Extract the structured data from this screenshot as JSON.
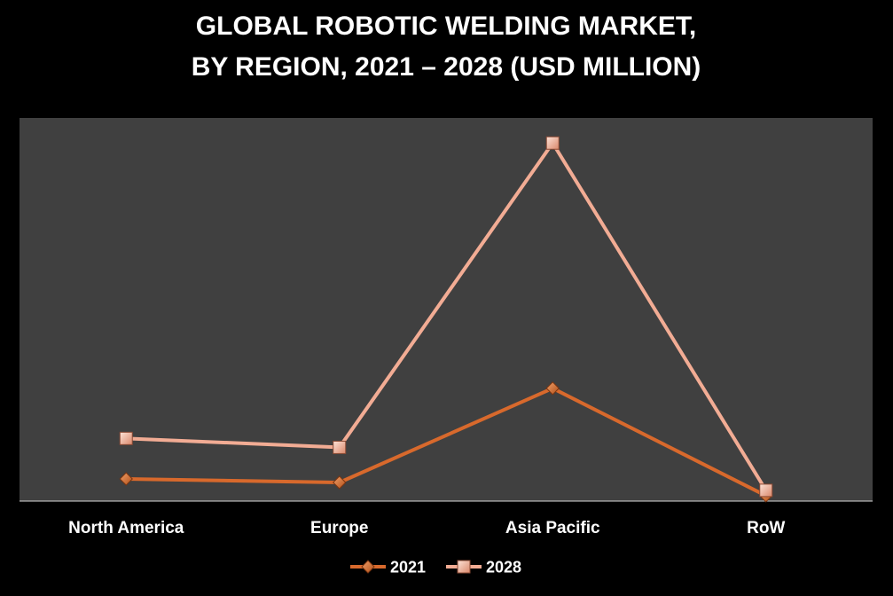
{
  "chart_data": {
    "type": "line",
    "title_lines": [
      "GLOBAL ROBOTIC WELDING MARKET,",
      "BY REGION, 2021 – 2028 (USD MILLION)"
    ],
    "categories": [
      "North America",
      "Europe",
      "Asia Pacific",
      "RoW"
    ],
    "series": [
      {
        "name": "2021",
        "values": [
          6.2,
          5.2,
          31.5,
          1.5
        ],
        "color": "#d8692c",
        "marker": "diamond"
      },
      {
        "name": "2028",
        "values": [
          17.5,
          15.0,
          100,
          3.0
        ],
        "color": "#f2ac94",
        "marker": "square"
      }
    ],
    "ylim": [
      0,
      107
    ],
    "grid": false,
    "legend_position": "bottom",
    "plot_background": "#404040",
    "page_background": "#000000"
  }
}
